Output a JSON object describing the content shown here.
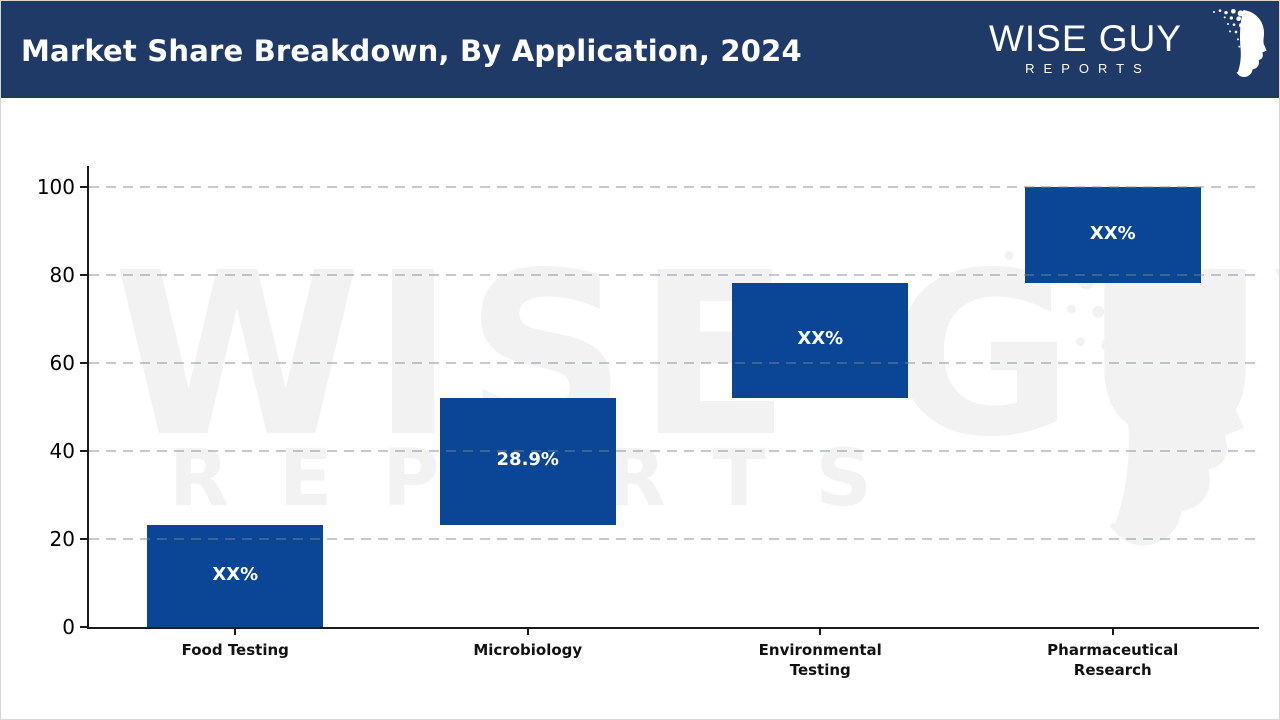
{
  "header": {
    "title": "Market Share Breakdown, By Application, 2024",
    "logo": {
      "line1": "WISE GUY",
      "line2": "REPORTS"
    }
  },
  "watermark": {
    "line1": "WISE GUY",
    "line2": "REPORTS"
  },
  "chart_data": {
    "type": "bar",
    "variant": "waterfall",
    "title": "Market Share Breakdown, By Application, 2024",
    "categories": [
      "Food Testing",
      "Microbiology",
      "Environmental Testing",
      "Pharmaceutical Research"
    ],
    "segments": [
      {
        "category": "Food Testing",
        "label": "XX%",
        "start": 0,
        "end": 23.2
      },
      {
        "category": "Microbiology",
        "label": "28.9%",
        "start": 23.2,
        "end": 52.1,
        "value": 28.9
      },
      {
        "category": "Environmental Testing",
        "label": "XX%",
        "start": 52.1,
        "end": 78.2
      },
      {
        "category": "Pharmaceutical Research",
        "label": "XX%",
        "start": 78.2,
        "end": 100
      }
    ],
    "ylim": [
      0,
      100
    ],
    "yticks": [
      0,
      20,
      40,
      60,
      80,
      100
    ],
    "xlabel": "",
    "ylabel": "",
    "grid": "horizontal-dashed",
    "legend": "none"
  },
  "colors": {
    "header_bg": "#203a68",
    "bar": "#0b4596",
    "bar_label": "#ffffff",
    "title": "#ffffff",
    "logo": "#ffffff",
    "axis": "#1a1a1a",
    "tick_label": "#000000",
    "grid_line": "rgba(125,136,152,0.45)",
    "watermark": "#f2f2f2",
    "page_border": "#d8d8d8"
  }
}
